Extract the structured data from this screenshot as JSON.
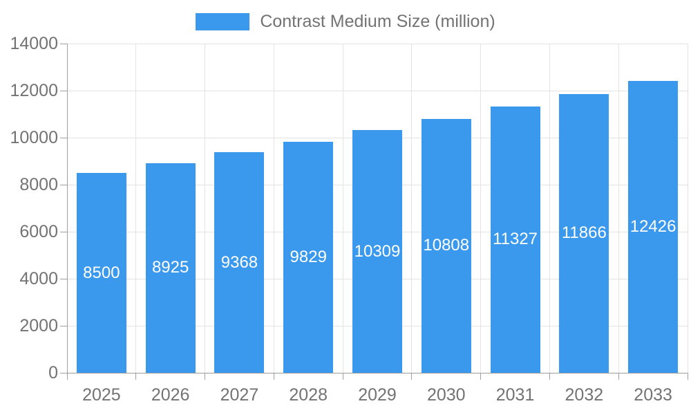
{
  "chart_data": {
    "type": "bar",
    "title": "Contrast Medium Size (million)",
    "series_name": "Contrast Medium Size (million)",
    "categories": [
      "2025",
      "2026",
      "2027",
      "2028",
      "2029",
      "2030",
      "2031",
      "2032",
      "2033"
    ],
    "values": [
      8500,
      8925,
      9368,
      9829,
      10309,
      10808,
      11327,
      11866,
      12426
    ],
    "xlabel": "",
    "ylabel": "",
    "ylim": [
      0,
      14000
    ],
    "ytick_step": 2000,
    "ytick_labels": [
      "0",
      "2000",
      "4000",
      "6000",
      "8000",
      "10000",
      "12000",
      "14000"
    ],
    "grid": true,
    "legend_position": "top-center",
    "value_label_position": "inside-middle",
    "colors": {
      "bar": "#3a99ec",
      "axis": "#9e9e9e",
      "grid": "#e3e3e3",
      "tick_text": "#737373",
      "value_text": "#ffffff",
      "background": "#ffffff"
    }
  }
}
